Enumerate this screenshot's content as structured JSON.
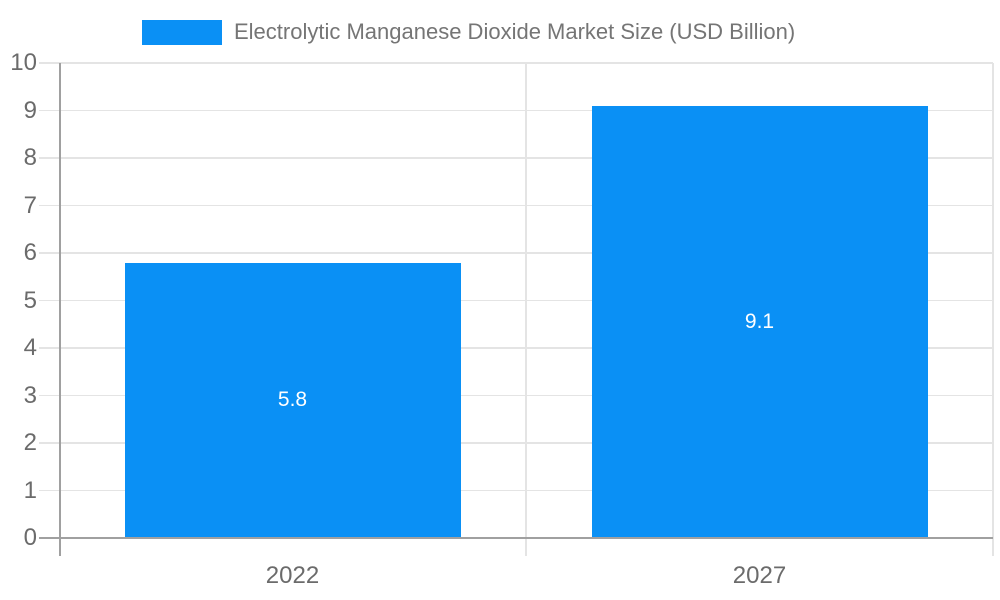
{
  "chart_data": {
    "type": "bar",
    "title": "Electrolytic Manganese Dioxide Market Size (USD Billion)",
    "categories": [
      "2022",
      "2027"
    ],
    "values": [
      5.8,
      9.1
    ],
    "value_labels": [
      "5.8",
      "9.1"
    ],
    "series": [
      {
        "name": "Electrolytic Manganese Dioxide Market Size (USD Billion)",
        "values": [
          5.8,
          9.1
        ]
      }
    ],
    "ylim": [
      0,
      10
    ],
    "ytick_interval": 1,
    "yticks": [
      "0",
      "1",
      "2",
      "3",
      "4",
      "5",
      "6",
      "7",
      "8",
      "9",
      "10"
    ],
    "grid": true,
    "legend_position": "top",
    "colors": {
      "bar": "#0a90f5",
      "value_label": "#ffffff",
      "grid_line": "#e4e4e4",
      "axis_line": "#a0a0a0",
      "tick_text": "#6b6b6b",
      "legend_text": "#757575",
      "background": "#ffffff"
    }
  }
}
